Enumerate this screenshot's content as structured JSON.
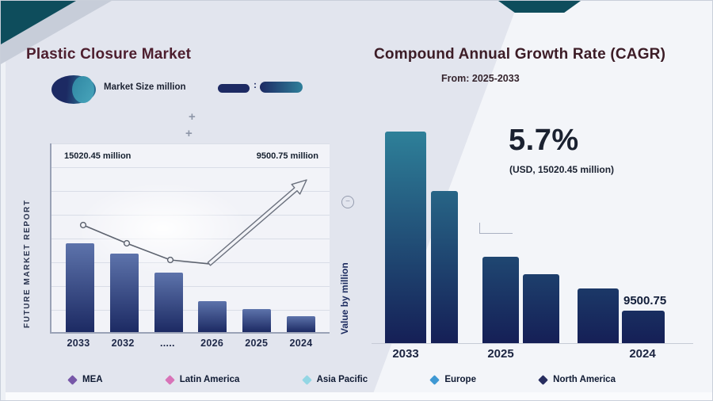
{
  "header": {
    "title": "Plastic Closure Market",
    "market_size_label": "Market Size million",
    "pill_separator": ":"
  },
  "icons": {
    "plus": "+",
    "minus": "−"
  },
  "left_chart": {
    "top_left_label": "15020.45 million",
    "top_right_label": "9500.75 million",
    "watermark": "FUTURE MARKET REPORT"
  },
  "right": {
    "title": "Compound Annual Growth Rate (CAGR)",
    "subtitle": "From: 2025-2033",
    "cagr_value": "5.7%",
    "cagr_caption": "(USD, 15020.45 million)",
    "value_axis_label": "Value by million",
    "end_value_label": "9500.75"
  },
  "chart_data": [
    {
      "type": "bar",
      "title": "Plastic Closure Market — Market Size million",
      "categories": [
        "2033",
        "2032",
        ".....",
        "2026",
        "2025",
        "2024"
      ],
      "values": [
        15020.45,
        14250,
        12800,
        10620,
        10040,
        9500.75
      ],
      "ylim": [
        9000,
        15500
      ],
      "grid": true,
      "annotations": [
        "15020.45 million",
        "9500.75 million"
      ],
      "trend": "marker line descending from 2033 to 2026 then outlined arrow rising toward the 9500.75 million label"
    },
    {
      "type": "bar",
      "title": "Compound Annual Growth Rate (CAGR)",
      "subtitle": "From: 2025-2033",
      "categories": [
        "2033",
        "2025",
        "2024"
      ],
      "series": [
        {
          "name": "bar-a",
          "relative_heights": [
            1.0,
            0.41,
            0.26
          ]
        },
        {
          "name": "bar-b",
          "relative_heights": [
            0.72,
            0.33,
            0.155
          ]
        }
      ],
      "ylabel": "Value by million",
      "annotations": [
        "5.7%",
        "(USD, 15020.45 million)",
        "9500.75"
      ],
      "legend_position": "bottom"
    }
  ],
  "legend": {
    "items": [
      {
        "label": "MEA",
        "color": "#7757a8"
      },
      {
        "label": "Latin America",
        "color": "#d873b8"
      },
      {
        "label": "Asia Pacific",
        "color": "#93d6e4"
      },
      {
        "label": "Europe",
        "color": "#3e98d3"
      },
      {
        "label": "North America",
        "color": "#272d5f"
      }
    ]
  },
  "colors": {
    "accent_teal": "#0e4d5c",
    "title_maroon": "#4d1e2e",
    "bar_gradient_top": "#2e8099",
    "bar_gradient_bottom": "#151f56",
    "left_bar_top": "#5d73ab",
    "left_bar_bottom": "#1c2a63",
    "background": "#e2e5ee",
    "background_light": "#f3f5f9"
  }
}
